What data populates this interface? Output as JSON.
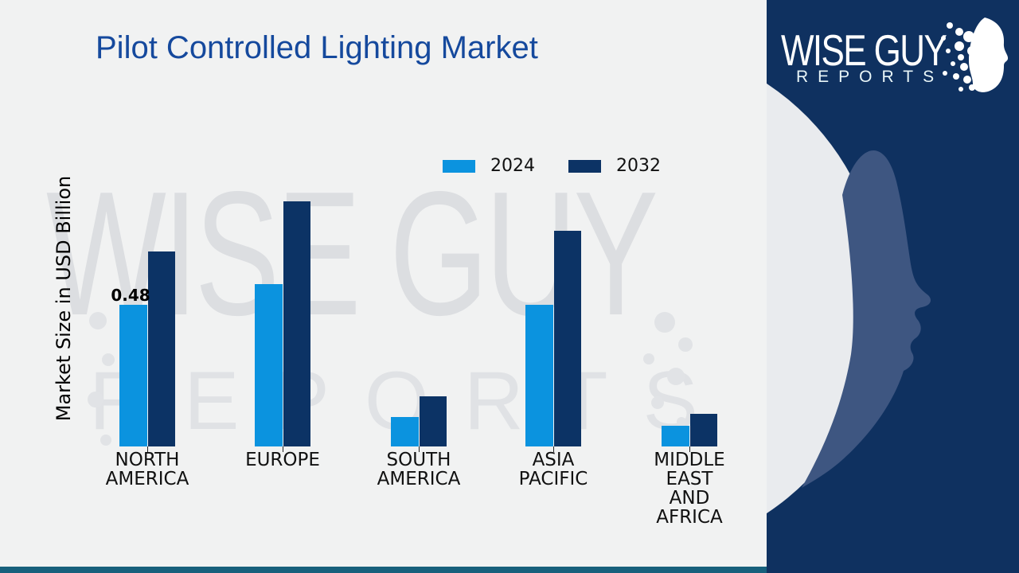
{
  "title": "Pilot Controlled Lighting Market",
  "chart_data": {
    "type": "bar",
    "title": "Pilot Controlled Lighting Market",
    "ylabel": "Market Size in USD Billion",
    "xlabel": "",
    "categories": [
      "NORTH AMERICA",
      "EUROPE",
      "SOUTH AMERICA",
      "ASIA PACIFIC",
      "MIDDLE EAST AND AFRICA"
    ],
    "series": [
      {
        "name": "2024",
        "color": "#0b93df",
        "values": [
          0.48,
          0.55,
          0.1,
          0.48,
          0.07
        ]
      },
      {
        "name": "2032",
        "color": "#0c3365",
        "values": [
          0.66,
          0.83,
          0.17,
          0.73,
          0.11
        ]
      }
    ],
    "annotation": {
      "text": "0.48",
      "series": 0,
      "category": 0
    },
    "ylim": [
      0,
      0.9
    ],
    "grid": false,
    "legend_position": "top"
  },
  "legend": {
    "items": [
      {
        "label": "2024",
        "color": "#0b93df"
      },
      {
        "label": "2032",
        "color": "#0c3365"
      }
    ]
  },
  "logo": {
    "line1": "WISE GUY",
    "line2": "REPORTS"
  },
  "watermark": {
    "line1": "WISE GUY",
    "line2": "REPORTS"
  },
  "colors": {
    "background": "#f1f2f2",
    "title": "#15499d",
    "bar_2024": "#0b93df",
    "bar_2032": "#0c3365",
    "brand_panel": "#0f3160",
    "accent_strip": "#17607c",
    "watermark": "#dcdee1",
    "face_silhouette": "#3e5681"
  }
}
